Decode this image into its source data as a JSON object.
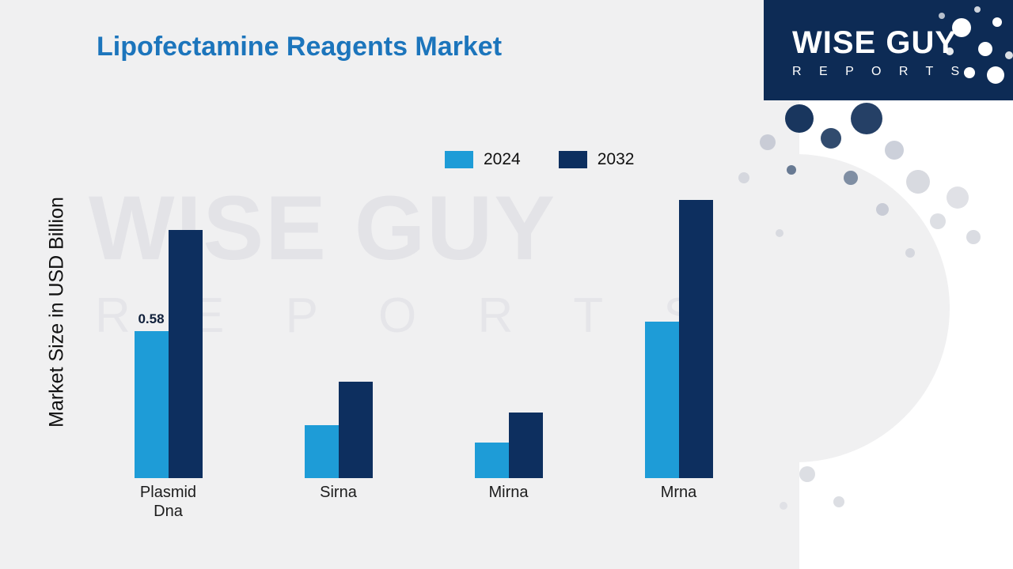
{
  "title": "Lipofectamine Reagents Market",
  "y_axis_label": "Market Size in USD Billion",
  "legend": [
    {
      "label": "2024",
      "color": "#1e9cd7"
    },
    {
      "label": "2032",
      "color": "#0d2f5f"
    }
  ],
  "watermark": {
    "line1": "WISE GUY",
    "line2": "R E P O R T S"
  },
  "logo": {
    "line1": "WISE GUY",
    "line2": "R E P O R T S"
  },
  "colors": {
    "series_2024": "#1e9cd7",
    "series_2032": "#0d2f5f",
    "title_blue": "#1c75bc",
    "background_gray": "#f0f0f1",
    "logo_navy": "#0d2b55"
  },
  "chart_data": {
    "type": "bar",
    "categories": [
      "Plasmid Dna",
      "Sirna",
      "Mirna",
      "Mrna"
    ],
    "series": [
      {
        "name": "2024",
        "color": "#1e9cd7",
        "values": [
          0.58,
          0.21,
          0.14,
          0.62
        ],
        "labels": [
          "0.58",
          "",
          "",
          ""
        ]
      },
      {
        "name": "2032",
        "color": "#0d2f5f",
        "values": [
          0.98,
          0.38,
          0.26,
          1.1
        ],
        "labels": [
          "",
          "",
          "",
          ""
        ]
      }
    ],
    "title": "Lipofectamine Reagents Market",
    "xlabel": "",
    "ylabel": "Market Size in USD Billion",
    "ylim": [
      0,
      1.2
    ],
    "grid": false,
    "legend_position": "top-center",
    "bar_value_labels": [
      {
        "category": "Plasmid Dna",
        "series": "2024",
        "label": "0.58"
      }
    ]
  }
}
